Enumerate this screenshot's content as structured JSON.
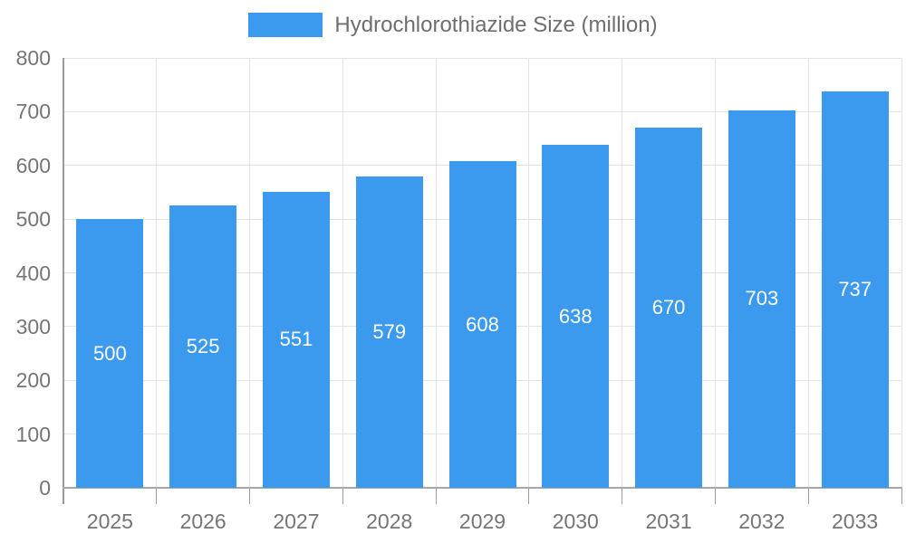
{
  "legend": {
    "series_label": "Hydrochlorothiazide Size (million)"
  },
  "chart_data": {
    "type": "bar",
    "title": "",
    "categories": [
      "2025",
      "2026",
      "2027",
      "2028",
      "2029",
      "2030",
      "2031",
      "2032",
      "2033"
    ],
    "values": [
      500,
      525,
      551,
      579,
      608,
      638,
      670,
      703,
      737
    ],
    "series": [
      {
        "name": "Hydrochlorothiazide Size (million)",
        "values": [
          500,
          525,
          551,
          579,
          608,
          638,
          670,
          703,
          737
        ]
      }
    ],
    "xlabel": "",
    "ylabel": "",
    "ylim": [
      0,
      800
    ],
    "ytick_interval": 100,
    "yticks": [
      0,
      100,
      200,
      300,
      400,
      500,
      600,
      700,
      800
    ],
    "grid": true,
    "legend_position": "top-center",
    "value_labels_shown": true,
    "colors": {
      "bar": "#3B99EE",
      "value_label": "#FFFFFF",
      "axis_text": "#757575",
      "legend_text": "#6E6E6E",
      "gridline": "#E3E3E3",
      "axis_line": "#9A9A9A"
    }
  }
}
